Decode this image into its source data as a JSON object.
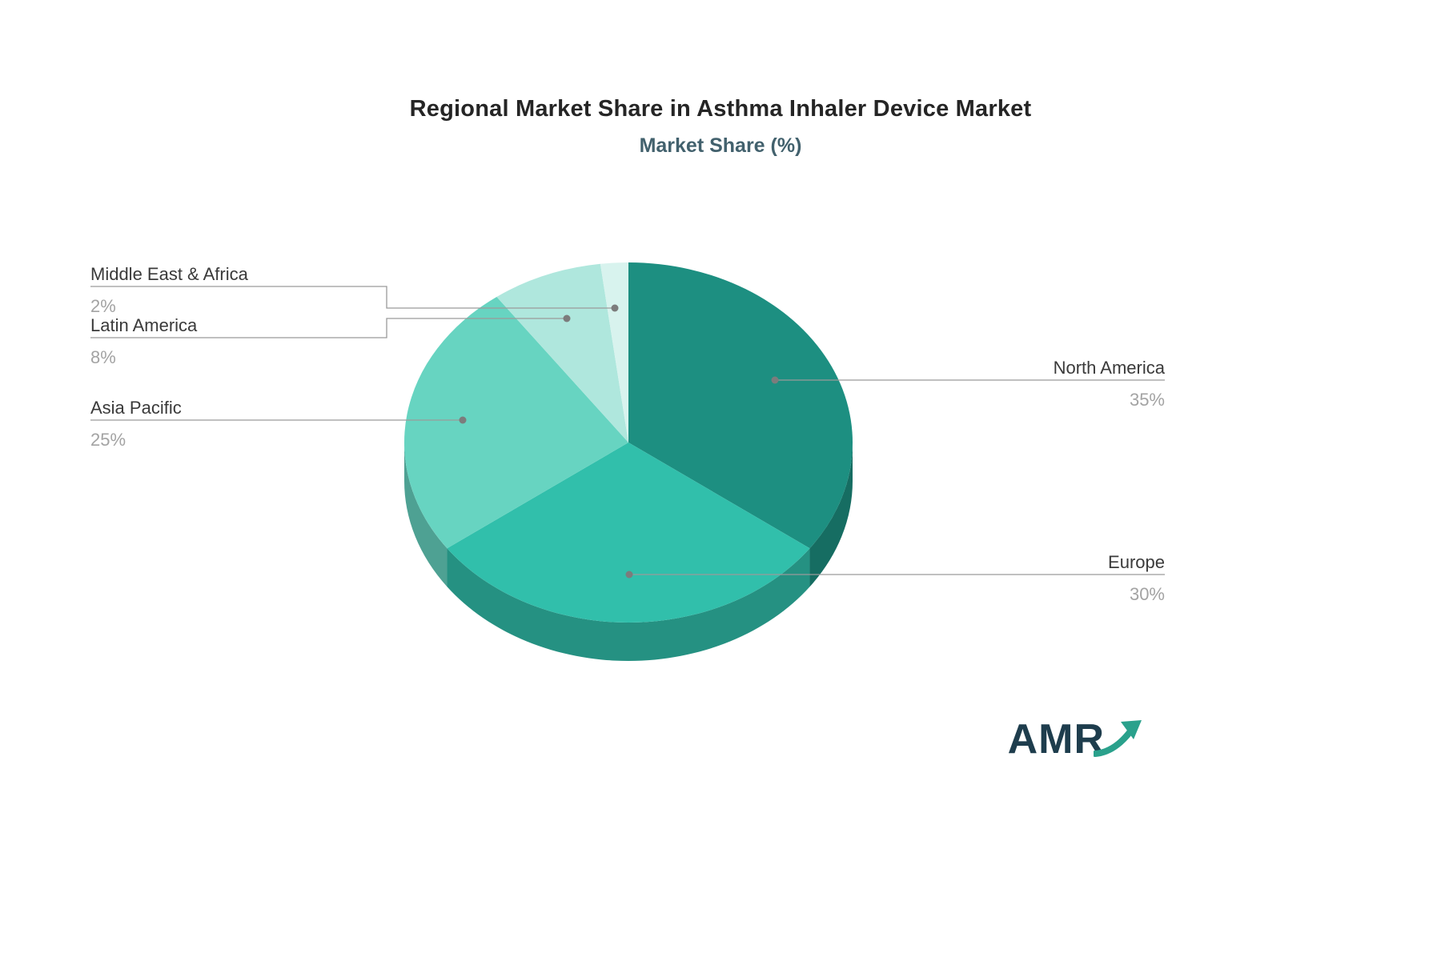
{
  "title": "Regional Market Share in Asthma Inhaler Device Market",
  "subtitle": "Market Share (%)",
  "logo": {
    "text": "AMR"
  },
  "chart_data": {
    "type": "pie",
    "title": "Regional Market Share in Asthma Inhaler Device Market",
    "subtitle": "Market Share (%)",
    "unit": "%",
    "effect": "3d",
    "legend_position": "none",
    "labels": [
      "North America",
      "Europe",
      "Asia Pacific",
      "Latin America",
      "Middle East & Africa"
    ],
    "values": [
      35,
      30,
      25,
      8,
      2
    ],
    "display_values": [
      "35%",
      "30%",
      "25%",
      "8%",
      "2%"
    ],
    "colors": [
      "#1d8f81",
      "#31bfab",
      "#67d4c1",
      "#afe7dd",
      "#d8f3ee"
    ],
    "start_angle_deg": -90,
    "direction": "clockwise",
    "leader_line_color": "#9a9a9a",
    "accent_color": "#2aa18c"
  }
}
